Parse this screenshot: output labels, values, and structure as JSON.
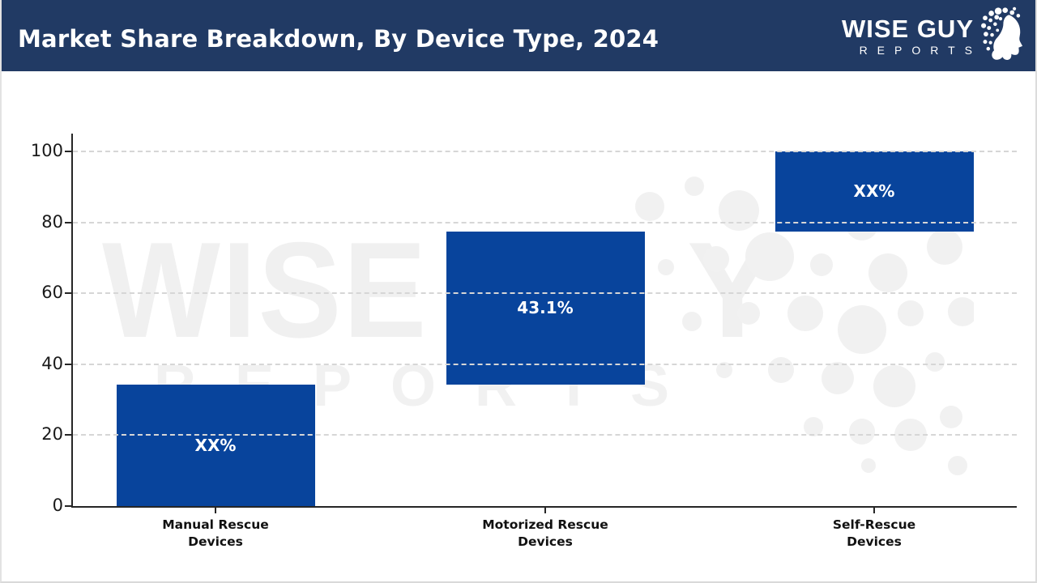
{
  "header": {
    "title": "Market Share Breakdown, By Device Type, 2024",
    "logo": {
      "name": "WISE GUY",
      "tagline": "REPORTS"
    }
  },
  "watermark": {
    "word": "WISE",
    "letter": "Y",
    "tagline": "REPORTS"
  },
  "colors": {
    "header_bg": "#213a64",
    "bar_blue": "#08449c",
    "bar_label_text": "#ffffff",
    "grid": "#d6d6d6",
    "axis": "#262626",
    "tick_text": "#1a1a1a",
    "watermark": "#f0f0f0"
  },
  "chart_data": {
    "type": "bar",
    "subtype": "floating-waterfall",
    "title": "Market Share Breakdown, By Device Type, 2024",
    "categories": [
      "Manual Rescue\nDevices",
      "Motorized Rescue\nDevices",
      "Self-Rescue\nDevices"
    ],
    "segments": [
      {
        "category": "Manual Rescue Devices",
        "label": "XX%",
        "start": 0,
        "end": 34.3
      },
      {
        "category": "Motorized Rescue Devices",
        "label": "43.1%",
        "start": 34.3,
        "end": 77.4,
        "value": 43.1
      },
      {
        "category": "Self-Rescue Devices",
        "label": "XX%",
        "start": 77.4,
        "end": 100
      }
    ],
    "yticks": [
      0,
      20,
      40,
      60,
      80,
      100
    ],
    "ylim": [
      0,
      105
    ],
    "xlabel": "",
    "ylabel": "",
    "grid": "horizontal-dashed",
    "legend": false
  }
}
